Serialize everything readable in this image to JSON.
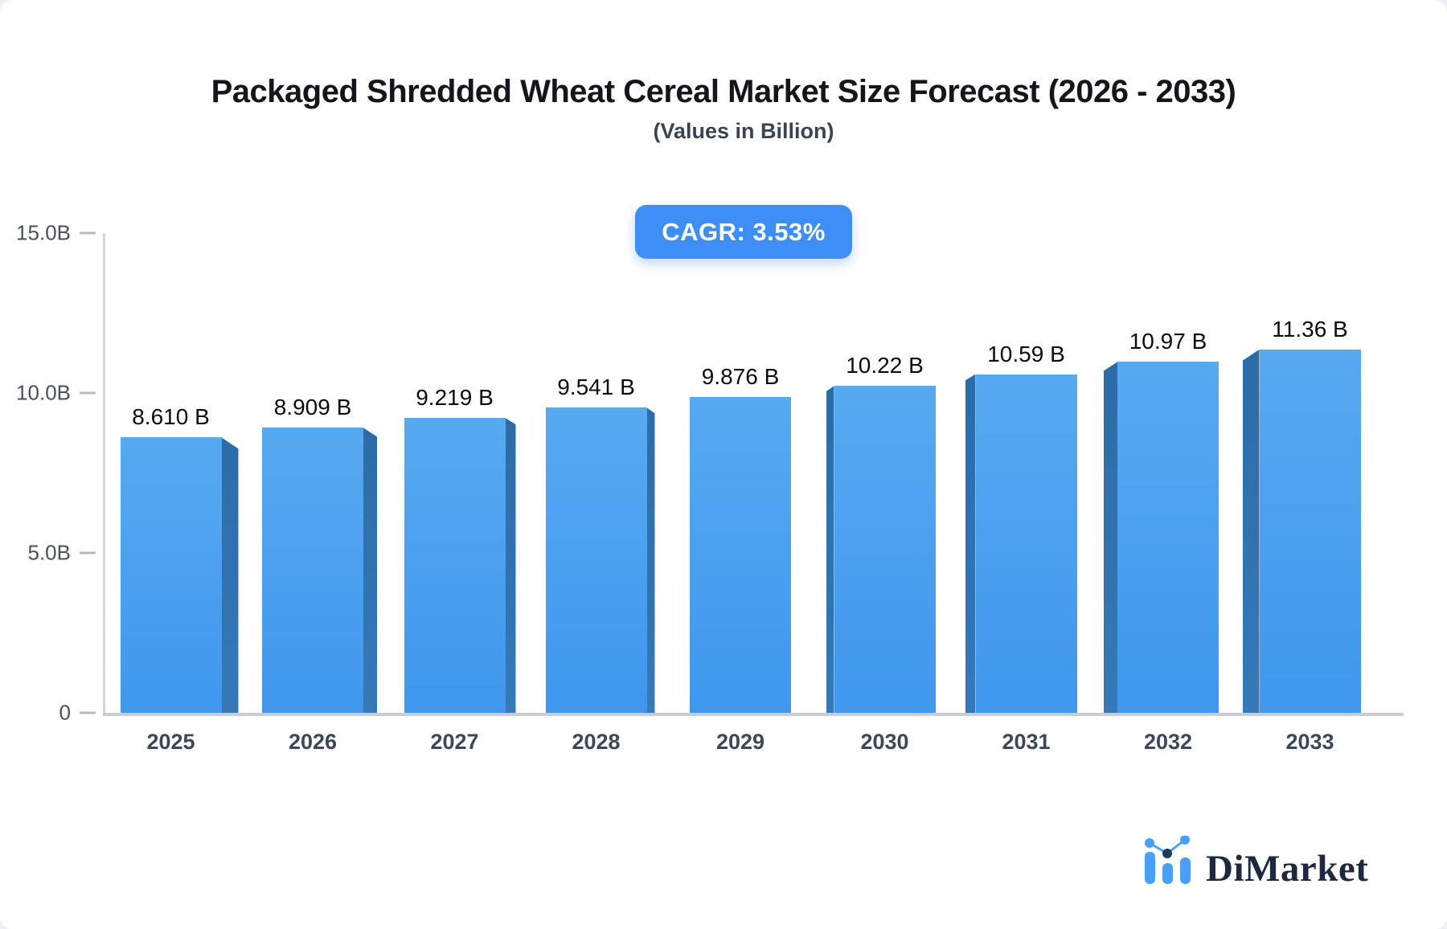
{
  "header": {
    "title": "Packaged Shredded Wheat Cereal Market Size Forecast (2026 - 2033)",
    "subtitle": "(Values in Billion)",
    "cagr_label": "CAGR: 3.53%"
  },
  "brand": {
    "name": "DiMarket",
    "icon": "dimarket-bars-trend-icon"
  },
  "colors": {
    "badge_blue": "#3e8ef7",
    "bar_face_top": "#57a9f0",
    "bar_face_bottom": "#3f97ee",
    "bar_side": "#2f73b2",
    "axis_line": "#c9ccd2",
    "tick_text": "#46505f",
    "year_text": "#3d4757",
    "logo_navy": "#1c2940",
    "logo_blue": "#4aa0f8"
  },
  "chart_data": {
    "type": "bar",
    "title": "Packaged Shredded Wheat Cereal Market Size Forecast (2026 - 2033)",
    "subtitle": "(Values in Billion)",
    "categories": [
      "2025",
      "2026",
      "2027",
      "2028",
      "2029",
      "2030",
      "2031",
      "2032",
      "2033"
    ],
    "values": [
      8.61,
      8.909,
      9.219,
      9.541,
      9.876,
      10.22,
      10.59,
      10.97,
      11.36
    ],
    "value_labels": [
      "8.610 B",
      "8.909 B",
      "9.219 B",
      "9.541 B",
      "9.876 B",
      "10.22 B",
      "10.59 B",
      "10.97 B",
      "11.36 B"
    ],
    "xlabel": "",
    "ylabel": "",
    "ylim": [
      0,
      15
    ],
    "yticks": [
      {
        "value": 0,
        "label": "0"
      },
      {
        "value": 5,
        "label": "5.0B"
      },
      {
        "value": 10,
        "label": "10.0B"
      },
      {
        "value": 15,
        "label": "15.0B"
      }
    ],
    "grid": false,
    "legend": "none",
    "bar_style": "3d-perspective",
    "cagr": "3.53%"
  }
}
